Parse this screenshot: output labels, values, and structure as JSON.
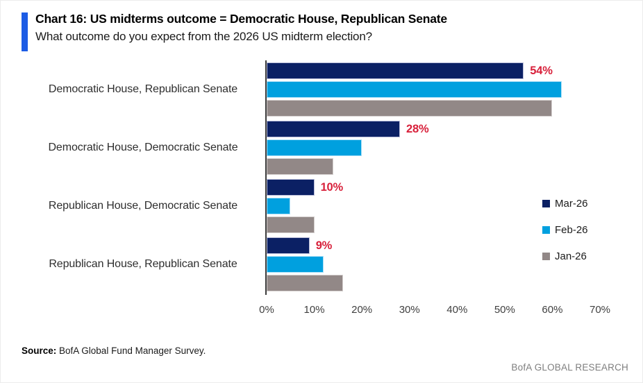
{
  "header": {
    "title": "Chart 16: US midterms outcome = Democratic House, Republican Senate",
    "subtitle": "What outcome do you expect from the 2026 US midterm election?",
    "accent_color": "#1C5CE5"
  },
  "chart_data": {
    "type": "bar",
    "orientation": "horizontal",
    "title": "Chart 16: US midterms outcome = Democratic House, Republican Senate",
    "subtitle": "What outcome do you expect from the 2026 US midterm election?",
    "categories": [
      "Democratic House, Republican Senate",
      "Democratic House, Democratic Senate",
      "Republican House, Democratic Senate",
      "Republican House, Republican Senate"
    ],
    "series": [
      {
        "name": "Mar-26",
        "color": "#0B2064",
        "border_color": "#b9bdd9",
        "values": [
          54,
          28,
          10,
          9
        ]
      },
      {
        "name": "Feb-26",
        "color": "#00A0DF",
        "border_color": "#abdff7",
        "values": [
          62,
          20,
          5,
          12
        ]
      },
      {
        "name": "Jan-26",
        "color": "#928887",
        "border_color": "#d3cecd",
        "values": [
          60,
          14,
          10,
          16
        ]
      }
    ],
    "data_labels": {
      "series": "Mar-26",
      "values": [
        "54%",
        "28%",
        "10%",
        "9%"
      ],
      "color": "#D8213B"
    },
    "x_ticks": [
      "0%",
      "10%",
      "20%",
      "30%",
      "40%",
      "50%",
      "60%",
      "70%"
    ],
    "xlim": [
      0,
      70
    ],
    "grid": false,
    "legend_position": "right"
  },
  "footer": {
    "source_label": "Source:",
    "source_text": " BofA Global Fund Manager Survey.",
    "brand": "BofA GLOBAL RESEARCH"
  }
}
